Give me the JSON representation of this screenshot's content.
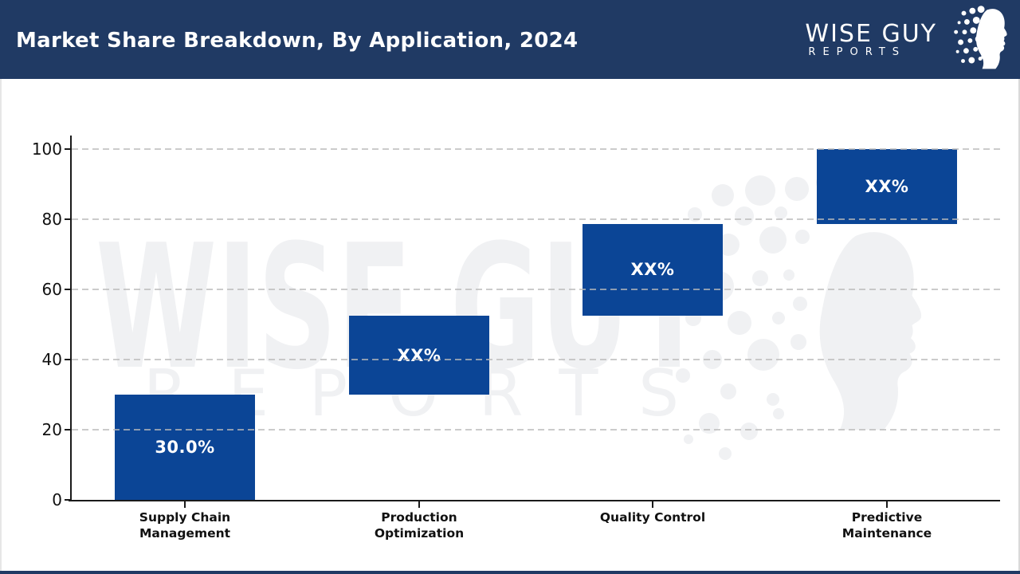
{
  "header": {
    "title": "Market Share Breakdown, By Application, 2024",
    "logo": {
      "name_line": "WISE GUY",
      "sub_line": "REPORTS"
    }
  },
  "watermark": {
    "name_line": "WISE GUY",
    "sub_line": "REPORTS"
  },
  "chart_data": {
    "type": "bar",
    "variant": "waterfall",
    "title": "Market Share Breakdown, By Application, 2024",
    "categories": [
      "Supply Chain Management",
      "Production Optimization",
      "Quality Control",
      "Predictive Maintenance"
    ],
    "category_display_lines": [
      [
        "Supply Chain",
        "Management"
      ],
      [
        "Production",
        "Optimization"
      ],
      [
        "Quality Control"
      ],
      [
        "Predictive",
        "Maintenance"
      ]
    ],
    "segments": [
      {
        "category": "Supply Chain Management",
        "label": "30.0%",
        "start": 0,
        "end": 30
      },
      {
        "category": "Production Optimization",
        "label": "XX%",
        "start": 30,
        "end": 52.5
      },
      {
        "category": "Quality Control",
        "label": "XX%",
        "start": 52.5,
        "end": 78.75
      },
      {
        "category": "Predictive Maintenance",
        "label": "XX%",
        "start": 78.75,
        "end": 100
      }
    ],
    "ylabel": "",
    "xlabel": "",
    "ylim": [
      0,
      100
    ],
    "yticks": [
      0,
      20,
      40,
      60,
      80,
      100
    ],
    "grid": {
      "horizontal": true,
      "style": "dashed",
      "above_bars": true
    },
    "legend": null,
    "colors": {
      "bar": "#0b4596",
      "bar_label": "#ffffff",
      "header_bg": "#203a64",
      "grid": "#bababa",
      "axis": "#1a1a1a",
      "watermark": "#f0f1f3"
    }
  }
}
